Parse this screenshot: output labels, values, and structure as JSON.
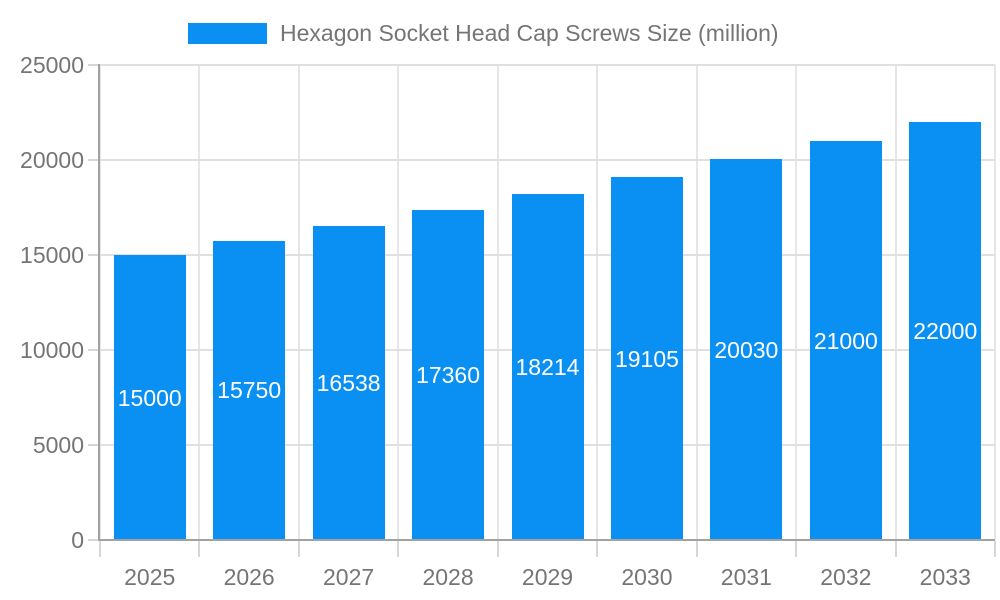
{
  "chart_data": {
    "type": "bar",
    "legend": "Hexagon Socket Head Cap Screws Size (million)",
    "series_name": "Hexagon Socket Head Cap Screws Size (million)",
    "categories": [
      "2025",
      "2026",
      "2027",
      "2028",
      "2029",
      "2030",
      "2031",
      "2032",
      "2033"
    ],
    "values": [
      15000,
      15750,
      16538,
      17360,
      18214,
      19105,
      20030,
      21000,
      22000
    ],
    "value_labels": [
      "15000",
      "15750",
      "16538",
      "17360",
      "18214",
      "19105",
      "20030",
      "21000",
      "22000"
    ],
    "yticks": [
      0,
      5000,
      10000,
      15000,
      20000,
      25000
    ],
    "ytick_labels": [
      "0",
      "5000",
      "10000",
      "15000",
      "20000",
      "25000"
    ],
    "ylim": [
      0,
      25000
    ],
    "xlabel": "",
    "ylabel": "",
    "grid": true,
    "legend_position": "top-center",
    "colors": {
      "bar": "#0a90f2",
      "bar_value_text": "#ffffff",
      "axis_text": "#757575",
      "gridline_h": "#e0e0e0",
      "gridline_v": "#e6e6e6",
      "axis_line": "#a2a2a2",
      "tick": "#d6d6d6",
      "background": "#ffffff"
    }
  }
}
